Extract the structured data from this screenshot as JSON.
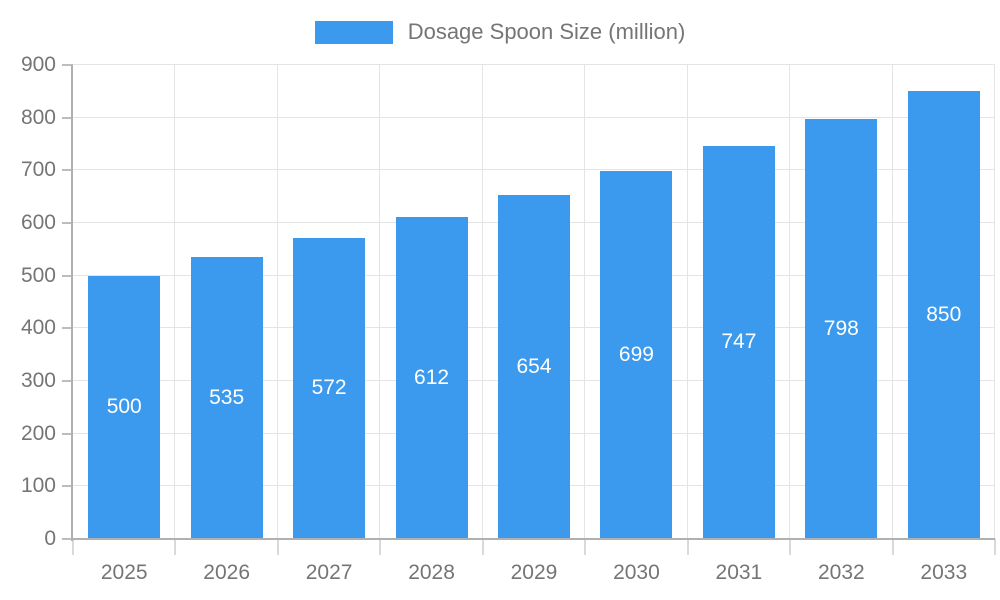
{
  "legend": {
    "title": "Dosage Spoon Size (million)"
  },
  "colors": {
    "bar": "#3b9aee",
    "grid": "#e4e4e4",
    "axis": "#b0b0b0",
    "y_tick": "#bdbdbd",
    "x_tick": "#d9d9d9",
    "text": "#757575",
    "bar_label": "#ffffff",
    "background": "#ffffff"
  },
  "chart_data": {
    "type": "bar",
    "title": "Dosage Spoon Size (million)",
    "series_name": "Dosage Spoon Size (million)",
    "categories": [
      "2025",
      "2026",
      "2027",
      "2028",
      "2029",
      "2030",
      "2031",
      "2032",
      "2033"
    ],
    "values": [
      500,
      535,
      572,
      612,
      654,
      699,
      747,
      798,
      850
    ],
    "xlabel": "",
    "ylabel": "",
    "ylim": [
      0,
      900
    ],
    "yticks": [
      0,
      100,
      200,
      300,
      400,
      500,
      600,
      700,
      800,
      900
    ],
    "grid": true,
    "legend_position": "top",
    "bar_labels_visible": true,
    "bar_label_position": "center"
  }
}
